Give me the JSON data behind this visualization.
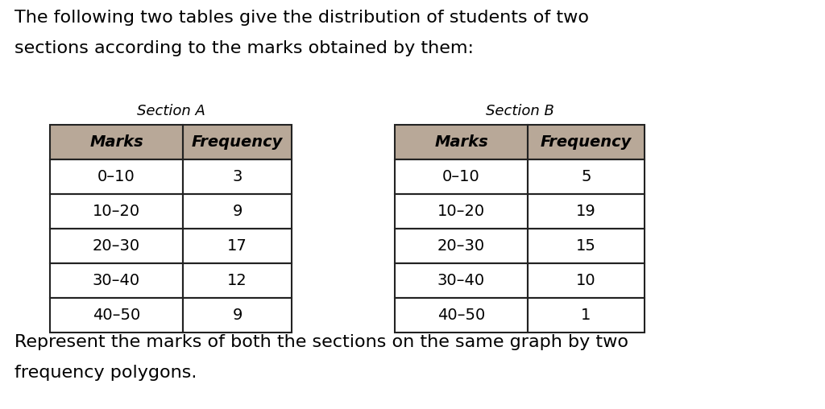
{
  "title_line1": "The following two tables give the distribution of students of two",
  "title_line2": "sections according to the marks obtained by them:",
  "bottom_line1": "Represent the marks of both the sections on the same graph by two",
  "bottom_line2": "frequency polygons.",
  "section_a_title": "Section A",
  "section_b_title": "Section B",
  "col_headers": [
    "Marks",
    "Frequency"
  ],
  "section_a_marks": [
    "0–10",
    "10–20",
    "20–30",
    "30–40",
    "40–50"
  ],
  "section_a_freq": [
    "3",
    "9",
    "17",
    "12",
    "9"
  ],
  "section_b_marks": [
    "0–10",
    "10–20",
    "20–30",
    "30–40",
    "40–50"
  ],
  "section_b_freq": [
    "5",
    "19",
    "15",
    "10",
    "1"
  ],
  "header_bg": "#b8a898",
  "table_border_color": "#222222",
  "bg_color": "#ffffff",
  "text_color": "#000000",
  "font_size_title": 16,
  "font_size_table": 14,
  "font_size_section": 13
}
